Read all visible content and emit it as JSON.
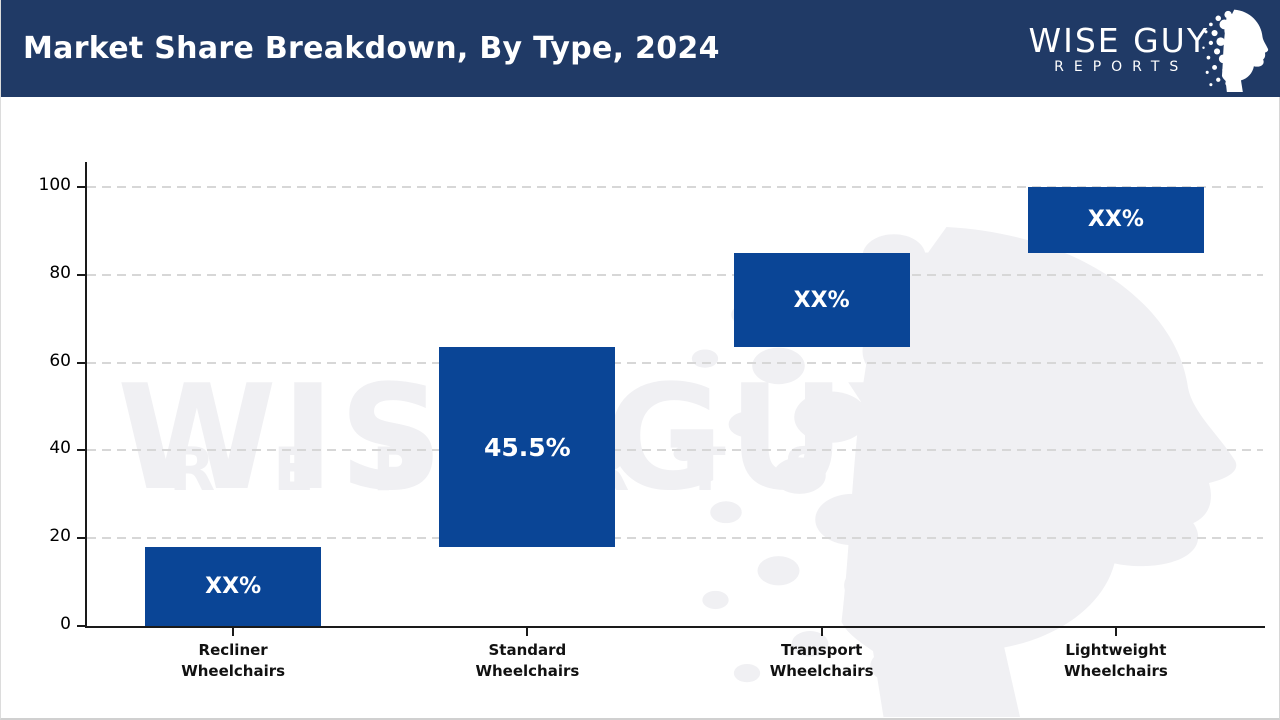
{
  "header": {
    "title": "Market Share Breakdown, By Type, 2024",
    "bg_color": "#203a66",
    "logo": {
      "line1": "WISE GUY",
      "line2": "REPORTS",
      "icon": "dotted-head-profile-icon"
    }
  },
  "watermark": {
    "line1": "WISE GUY",
    "line2": "REPORTS",
    "icon": "dotted-head-profile-icon",
    "color": "#f0f0f3"
  },
  "chart_data": {
    "type": "bar",
    "subtype": "floating-waterfall",
    "title": "Market Share Breakdown, By Type, 2024",
    "categories": [
      "Recliner Wheelchairs",
      "Standard Wheelchairs",
      "Transport Wheelchairs",
      "Lightweight Wheelchairs"
    ],
    "segments": [
      {
        "category": "Recliner Wheelchairs",
        "start": 0,
        "end": 18,
        "size_est_pct": 18,
        "label": "XX%"
      },
      {
        "category": "Standard Wheelchairs",
        "start": 18,
        "end": 63.5,
        "size_est_pct": 45.5,
        "label": "45.5%"
      },
      {
        "category": "Transport Wheelchairs",
        "start": 63.5,
        "end": 85,
        "size_est_pct": 21.5,
        "label": "XX%"
      },
      {
        "category": "Lightweight Wheelchairs",
        "start": 85,
        "end": 100,
        "size_est_pct": 15,
        "label": "XX%"
      }
    ],
    "xlabel": "",
    "ylabel": "",
    "ylim": [
      0,
      100
    ],
    "yticks": [
      0,
      20,
      40,
      60,
      80,
      100
    ],
    "grid": "horizontal-dashed",
    "legend": "none",
    "bar_color": "#0a4596",
    "bar_label_color": "#ffffff",
    "axis_color": "#1a1a1a"
  }
}
